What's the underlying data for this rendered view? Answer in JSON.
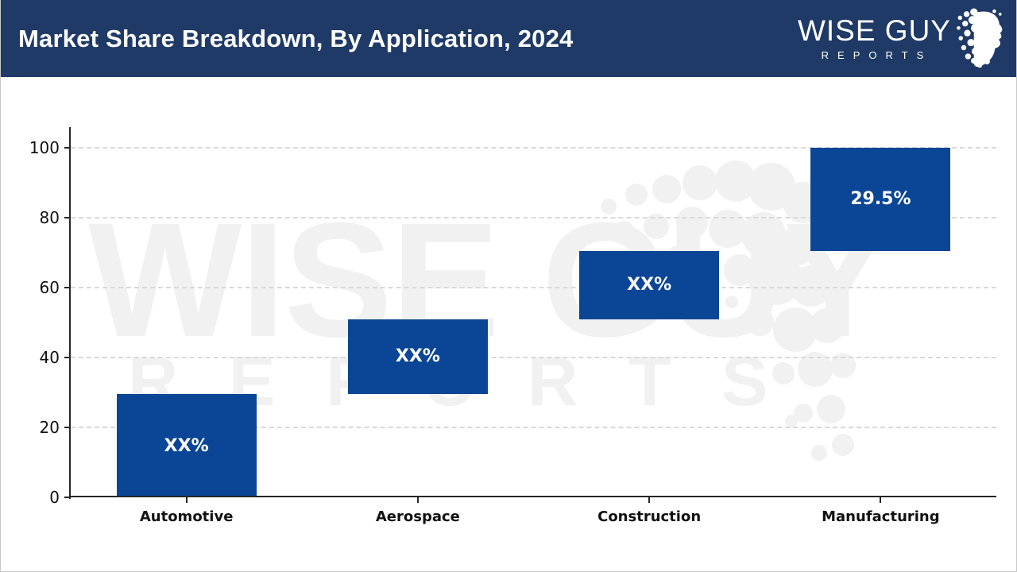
{
  "header": {
    "title": "Market Share Breakdown, By Application, 2024",
    "logo": {
      "primary": "WISE GUY",
      "secondary": "REPORTS"
    }
  },
  "watermark": {
    "line1": "WISE GUY",
    "line2": "REPORTS"
  },
  "colors": {
    "header_bg": "#1f3a66",
    "bar": "#0b4696",
    "grid": "#d9d9d9",
    "axis": "#262626",
    "bar_label_text": "#ffffff",
    "watermark": "#f1f1f1"
  },
  "chart_data": {
    "type": "bar",
    "subtype": "waterfall-floating-bars",
    "title": "Market Share Breakdown, By Application, 2024",
    "categories": [
      "Automotive",
      "Aerospace",
      "Construction",
      "Manufacturing"
    ],
    "segments": [
      {
        "category": "Automotive",
        "start": 0,
        "end": 29.5,
        "label": "XX%"
      },
      {
        "category": "Aerospace",
        "start": 29.5,
        "end": 51,
        "label": "XX%"
      },
      {
        "category": "Construction",
        "start": 51,
        "end": 70.5,
        "label": "XX%"
      },
      {
        "category": "Manufacturing",
        "start": 70.5,
        "end": 100,
        "label": "29.5%"
      }
    ],
    "values": [
      29.5,
      21.5,
      19.5,
      29.5
    ],
    "ylim": [
      0,
      100
    ],
    "yticks": [
      0,
      20,
      40,
      60,
      80,
      100
    ],
    "xlabel": "",
    "ylabel": "",
    "grid": "horizontal-dashed",
    "legend": "none"
  }
}
